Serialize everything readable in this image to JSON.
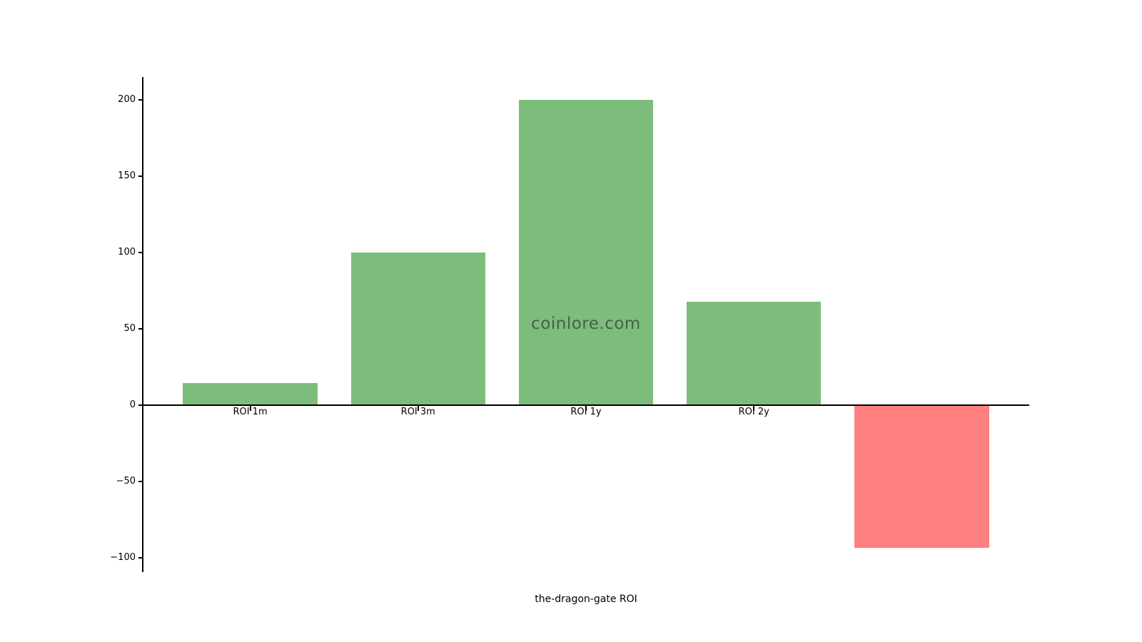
{
  "page": {
    "background": "#ffffff"
  },
  "chart": {
    "title": "the-dragon-gate ROI",
    "watermark": "coinlore.com",
    "colors": {
      "positive": "#7dbd7c",
      "negative": "#ff8080",
      "axis": "#000000",
      "text": "#000000",
      "watermark_text": "#465f46"
    }
  },
  "chart_data": {
    "type": "bar",
    "title": "the-dragon-gate ROI",
    "xlabel": "",
    "ylabel": "",
    "categories": [
      "ROI 1m",
      "ROI 3m",
      "ROI 1y",
      "ROI 2y",
      ""
    ],
    "values": [
      14.5,
      100,
      200,
      67.5,
      -93.5
    ],
    "bar_colors": [
      "#7dbd7c",
      "#7dbd7c",
      "#7dbd7c",
      "#7dbd7c",
      "#ff8080"
    ],
    "yticks": [
      200,
      150,
      100,
      50,
      0,
      -50,
      -100
    ],
    "ytick_labels": [
      "200",
      "150",
      "100",
      "50",
      "0",
      "−50",
      "−100"
    ],
    "ylim": [
      -108.7,
      214.7
    ],
    "grid": false,
    "legend": false,
    "annotations": [
      "coinlore.com"
    ]
  }
}
